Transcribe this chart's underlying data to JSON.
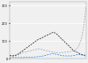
{
  "background_color": "#f0f0f0",
  "grid_color": "#ffffff",
  "series_non_eu": {
    "color": "#aaaaaa",
    "values": [
      20,
      18,
      17,
      16,
      16,
      16,
      17,
      18,
      19,
      20,
      21,
      22,
      24,
      26,
      28,
      30,
      32,
      34,
      35,
      36,
      37,
      38,
      39,
      40,
      41,
      42,
      43,
      44,
      45,
      46,
      47,
      48,
      49,
      50,
      51,
      52,
      53,
      54,
      55,
      56,
      57,
      56,
      55,
      54,
      53,
      52,
      51,
      50,
      49,
      48,
      47,
      46,
      45,
      44,
      43,
      42,
      41,
      40,
      39,
      38,
      38,
      37,
      37,
      36,
      36,
      36,
      35,
      35,
      35,
      35,
      35,
      35,
      36,
      36,
      36,
      37,
      37,
      38,
      38,
      39,
      39,
      40,
      40,
      41,
      42,
      43,
      44,
      45,
      46,
      48,
      50,
      53,
      57,
      62,
      68,
      75,
      85,
      95,
      108,
      125,
      145,
      168,
      195,
      225,
      260,
      295
    ]
  },
  "series_british": {
    "color": "#222222",
    "values": [
      20,
      19,
      18,
      18,
      18,
      18,
      19,
      20,
      21,
      22,
      24,
      26,
      28,
      31,
      34,
      37,
      40,
      43,
      46,
      49,
      52,
      55,
      58,
      61,
      64,
      67,
      70,
      73,
      76,
      79,
      82,
      85,
      88,
      91,
      94,
      97,
      100,
      103,
      106,
      108,
      110,
      112,
      114,
      116,
      118,
      120,
      122,
      124,
      126,
      128,
      130,
      132,
      134,
      136,
      138,
      140,
      142,
      144,
      146,
      148,
      150,
      148,
      146,
      144,
      142,
      138,
      134,
      130,
      126,
      122,
      118,
      114,
      110,
      106,
      102,
      98,
      94,
      90,
      86,
      82,
      78,
      74,
      70,
      66,
      62,
      58,
      54,
      50,
      46,
      44,
      42,
      40,
      38,
      36,
      34,
      32,
      30,
      28,
      26,
      25,
      24,
      23,
      22,
      21,
      21,
      20
    ]
  },
  "series_eu": {
    "color": "#1e90ff",
    "values": [
      8,
      8,
      8,
      8,
      8,
      8,
      8,
      8,
      8,
      8,
      8,
      8,
      8,
      8,
      8,
      8,
      8,
      8,
      8,
      8,
      9,
      9,
      9,
      9,
      9,
      9,
      9,
      10,
      10,
      10,
      10,
      10,
      11,
      11,
      11,
      11,
      12,
      12,
      12,
      13,
      13,
      14,
      14,
      15,
      15,
      16,
      17,
      18,
      19,
      20,
      21,
      22,
      23,
      24,
      25,
      26,
      27,
      28,
      29,
      30,
      30,
      29,
      28,
      27,
      26,
      25,
      24,
      23,
      22,
      21,
      20,
      19,
      18,
      18,
      18,
      17,
      17,
      17,
      17,
      17,
      17,
      17,
      17,
      17,
      17,
      17,
      18,
      18,
      19,
      20,
      21,
      22,
      23,
      24,
      25,
      25,
      25,
      24,
      23,
      22,
      21,
      20,
      19,
      18,
      18,
      18
    ]
  },
  "ylim": [
    0,
    320
  ],
  "yticks": [
    0,
    100,
    200,
    300
  ],
  "n_points": 106
}
